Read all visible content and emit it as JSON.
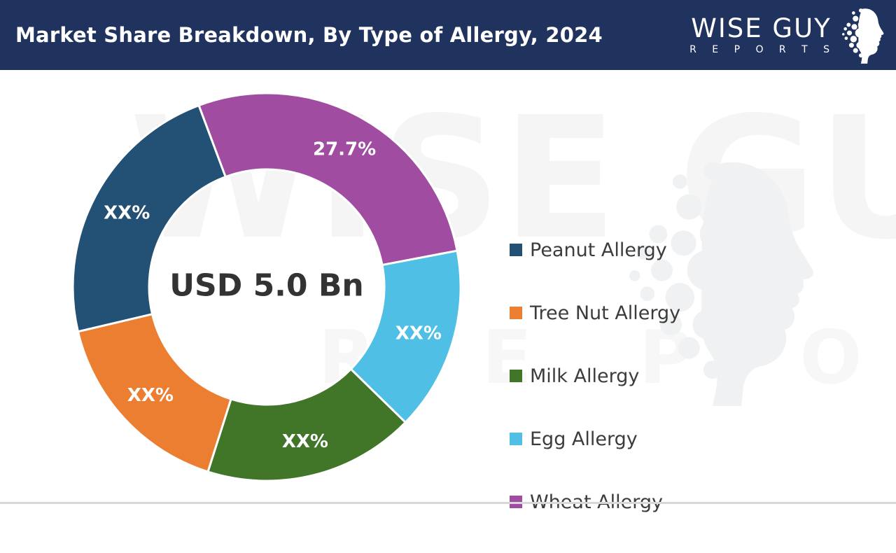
{
  "header": {
    "title": "Market Share Breakdown, By Type of Allergy, 2024",
    "background": "#20325E",
    "logo": {
      "wordmark": "WISE GUY",
      "sub": "REPORTS"
    }
  },
  "chart_data": {
    "type": "pie",
    "subtype": "donut",
    "title": "Market Share Breakdown, By Type of Allergy, 2024",
    "center_label": "USD 5.0 Bn",
    "start_angle_deg": -20.5,
    "direction": "clockwise",
    "inner_radius_ratio": 0.607,
    "legend_position": "right",
    "segments": [
      {
        "name": "Wheat Allergy",
        "display_label": "27.7%",
        "value_pct": 27.7,
        "color": "#A04CA0"
      },
      {
        "name": "Egg Allergy",
        "display_label": "XX%",
        "value_pct": 15.3,
        "color": "#4FBFE6"
      },
      {
        "name": "Milk Allergy",
        "display_label": "XX%",
        "value_pct": 17.6,
        "color": "#417629"
      },
      {
        "name": "Tree Nut Allergy",
        "display_label": "XX%",
        "value_pct": 16.4,
        "color": "#EC7E32"
      },
      {
        "name": "Peanut Allergy",
        "display_label": "XX%",
        "value_pct": 23.0,
        "color": "#235175"
      }
    ]
  },
  "legend": {
    "items": [
      {
        "label": "Peanut Allergy",
        "color": "#235175"
      },
      {
        "label": "Tree Nut Allergy",
        "color": "#EC7E32"
      },
      {
        "label": "Milk Allergy",
        "color": "#417629"
      },
      {
        "label": "Egg Allergy",
        "color": "#4FBFE6"
      },
      {
        "label": "Wheat Allergy",
        "color": "#A04CA0"
      }
    ]
  },
  "watermark": {
    "line1": "WISE GU",
    "line2": "R E P O R T S"
  },
  "colors": {
    "center_text": "#333333",
    "footer_divider": "#D8D8D8",
    "slice_label": "#FFFFFF"
  }
}
